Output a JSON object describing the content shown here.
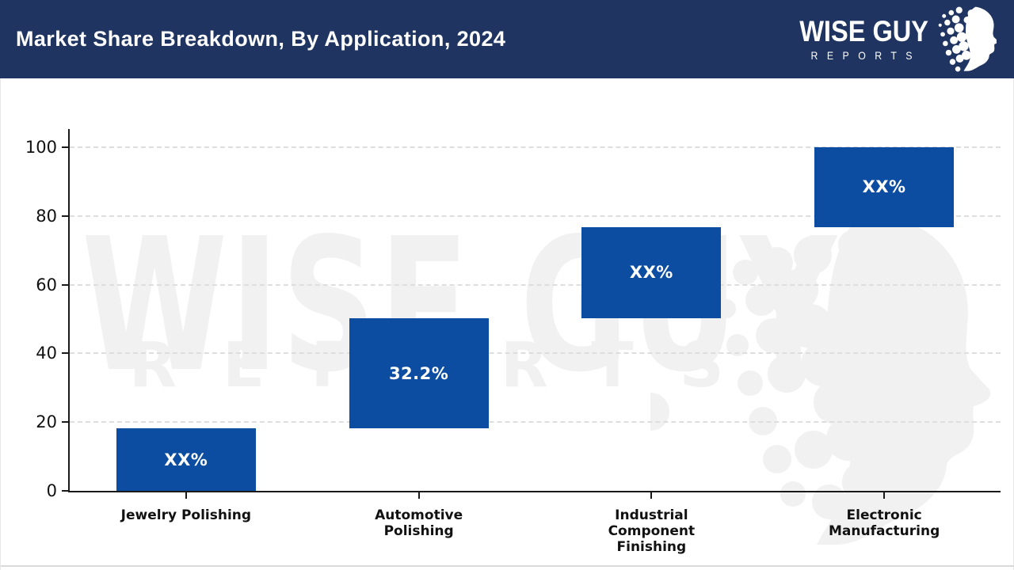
{
  "header": {
    "title": "Market Share Breakdown, By Application, 2024",
    "brand": {
      "name": "WISE GUY",
      "sub": "REPORTS"
    }
  },
  "watermark": {
    "line1": "WISE GUY",
    "line2": "REPORTS"
  },
  "colors": {
    "header_bg": "#1f3461",
    "bar": "#0c4da2",
    "bar_label": "#ffffff",
    "axis": "#1a1a1a",
    "grid": "#dedede",
    "watermark": "#f1f1f1"
  },
  "chart_data": {
    "type": "waterfall",
    "title": "Market Share Breakdown, By Application, 2024",
    "categories": [
      "Jewelry Polishing",
      "Automotive Polishing",
      "Industrial Component Finishing",
      "Electronic Manufacturing"
    ],
    "segments": [
      {
        "category": "Jewelry Polishing",
        "label_lines": [
          "Jewelry Polishing"
        ],
        "start": 0,
        "end": 18.1,
        "label": "XX%"
      },
      {
        "category": "Automotive Polishing",
        "label_lines": [
          "Automotive",
          "Polishing"
        ],
        "start": 18.1,
        "end": 50.3,
        "label": "32.2%"
      },
      {
        "category": "Industrial Component Finishing",
        "label_lines": [
          "Industrial",
          "Component",
          "Finishing"
        ],
        "start": 50.3,
        "end": 76.8,
        "label": "XX%"
      },
      {
        "category": "Electronic Manufacturing",
        "label_lines": [
          "Electronic",
          "Manufacturing"
        ],
        "start": 76.8,
        "end": 100,
        "label": "XX%"
      }
    ],
    "ylim": [
      0,
      100
    ],
    "yticks": [
      0,
      20,
      40,
      60,
      80,
      100
    ],
    "xlabel": "",
    "ylabel": "",
    "grid": "horizontal-dashed",
    "legend": null
  }
}
